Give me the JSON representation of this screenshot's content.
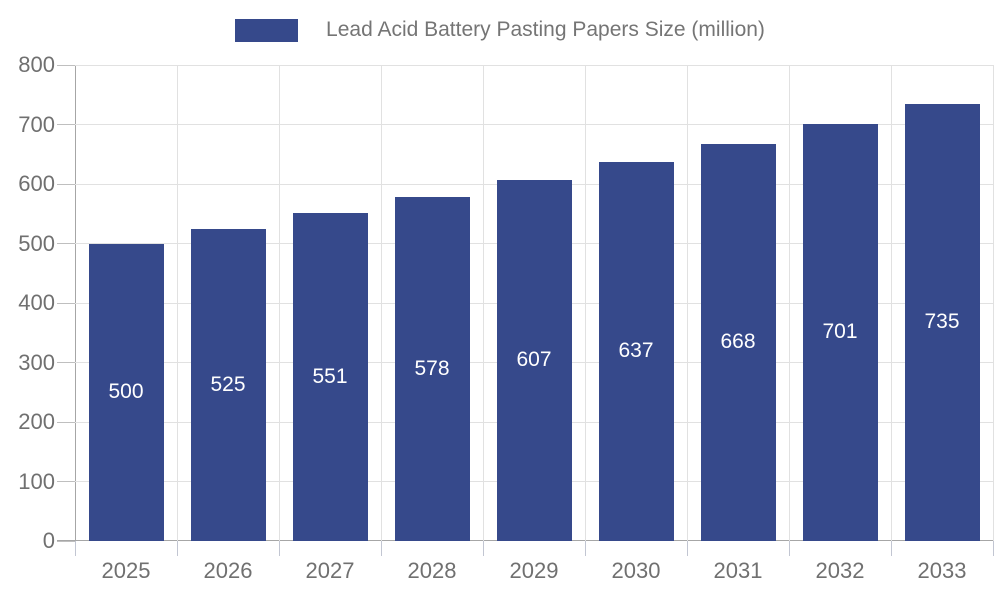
{
  "chart_data": {
    "type": "bar",
    "title": "Lead Acid Battery Pasting Papers Size (million)",
    "categories": [
      "2025",
      "2026",
      "2027",
      "2028",
      "2029",
      "2030",
      "2031",
      "2032",
      "2033"
    ],
    "values": [
      500,
      525,
      551,
      578,
      607,
      637,
      668,
      701,
      735
    ],
    "xlabel": "",
    "ylabel": "",
    "ylim": [
      0,
      800
    ],
    "ytick_step": 100,
    "grid": true,
    "legend_position": "top-center",
    "value_labels": "inside-center"
  },
  "colors": {
    "accent": "#36498B",
    "value_label": "#FFFFFF",
    "text": "#707070",
    "legend_text": "#757575",
    "gridline": "#E1E1E1",
    "axis_line": "#A6A6A6",
    "y_tick": "#BFBFBF",
    "x_tick": "#C2C6D2",
    "background": "#FFFFFF"
  }
}
